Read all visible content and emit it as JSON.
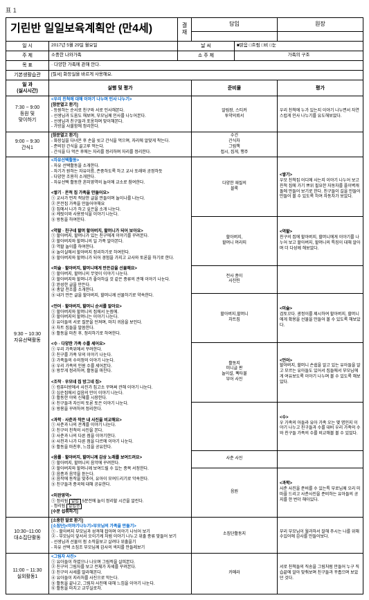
{
  "tableLabel": "표 1",
  "title": "기린반 일일보육계획안 (만4세)",
  "approval": {
    "gyeoljae": "결재",
    "damim": "담임",
    "wonjang": "원장"
  },
  "dateRow": {
    "label": "일  시",
    "value": "2017년  5월 29일 월요일",
    "weatherLabel": "날  씨",
    "weatherValue": "■맑음 □흐림 □비 □눈"
  },
  "topicRow": {
    "label": "주  제",
    "value": "소중한 나와가족",
    "subLabel": "소 주 제",
    "subValue": "가족의 구조"
  },
  "goalRow": {
    "label": "목  표",
    "value": "· 다양한 가족에 관해 안다."
  },
  "habitRow": {
    "label": "기본생활습관",
    "value": "[질서] 화장실을 바르게 사용해요."
  },
  "tableHeaders": {
    "time": "일  과\n(실시시간)",
    "content": "실행 및 평가",
    "materials": "준비물",
    "eval": "평가"
  },
  "rows": [
    {
      "time": "7:30 ~ 9:00\n등원 및\n맞이하기",
      "contentHtml": "<span class='activity-title'>&lt;우리 친척에 대해 이야기 나누며 인사 나누기&gt;</span><br><span class='sub-title'>[창문열고 환기]</span><br>- 등원하는 순서로 친구와 서로 인사해본다.<br>- 선생님과 도움도 해보며, 부모님께 인사를 나누어본다.<br>- 선생님과 친구들과 포옹하며 맞이해본다.<br>- 가방을 사물함에 정리한다.",
      "materials": "알림장, 스티커\n투약의뢰서",
      "eval": "우리 친척에 누가 있는지 이야기 나누면서 자연스럽게 인사 나누기를 유도해보았다."
    },
    {
      "time": "9:00 ~ 9:30\n간식1",
      "contentHtml": "<span class='sub-title'>[창문열고 환기]</span><br>- 화장실을 다녀온 후 손을 씻고 간식을 먹으며, 자리에 알맞게 착는다.<br>- 준비된 간식을 골고루 먹는다.<br>- 간식을 다 먹은 후에는 자리를 정리하며 자리를 정리한다.",
      "materials": "수건\n간식차\n그림책\n접시, 집게, 행주",
      "eval": ""
    },
    {
      "time": "9:30 ~ 10:30\n자유선택활동",
      "contentHtml": "<span class='activity-title'>&lt;자유선택활동&gt;</span><br>- 자유 선택활동을 소개한다.<br>- 자기가 원하는 자유이름, 존중하도록 하고 교사 또래와 공정하듯<br>- 다양한 조용히 소개한다.<br>- 자유선택 활동한 흔미영역의 놀이에 교소로 참여한다.<br><br><span class='sub-title'>&lt;쌓기 · 온적 집 가족을 만들어요&gt;</span><br>① 교사가 먼저 적당한 글을 만들이며 놀이나를 나눈다.<br>② 온전집 가족을 만들어야해요<br>③ 집에서 나가 하고 싶은을 소개 나눈다.<br>④ 케릿이와 사용방식을 이야기 나눈다.<br>⑤ 왕동을 하여한다.<br><br><span class='sub-title'>&lt;역할 · 친구네 할머 할아버지, 할머니가 되어 보아요&gt;</span><br>① 할아버지, 할머니가 있는 친구에게 이야기를 꾸려본다.<br>② 할아버지와 할머니의 일 가족 알아본다.<br>③ 역할 놀이를 하여한다.<br>④ 놀이실에서 할아버지 정리하기로 하여한다.<br>⑤ 할아버지와 할머니가 되어 경험을 가지고 교사와 토론을 하기로 한다.<br><br><span class='sub-title'>&lt;미술 · 할아버지, 할머니에게 만든감을 선물해요&gt;</span><br>① 할아버지, 할머니의 무엇이 이야기 나눈다.<br>② 할아버지와 할머니가 좋아하실 것 같은 종류의 관해 이야기 나눈다.<br>③ 완성한 글을 만든다.<br>④ 총알 천조를 소개한다.<br>⑤ 내가 만든 글을 할아버지, 할머니께 선물하기로 약속한다.<br><br><span class='sub-title'>&lt;언어 · 할아버지, 할머니 순서를 알아요&gt;</span><br>① 할아버지와 할머니의 집에서 눈점에.<br>② 할아버지의 할머니는 이야기 나눈다.<br>③ 유아들의 서로 질문을 던져며, 마치 귀음을 보인다.<br>④ 차트 집들을 말씀한다.<br>⑤ 활동을 마친 후, 정리하기로 하여한다.<br><br><span class='sub-title'>&lt;수 · 다양한 가족 수를 세어요&gt;</span><br>① 우리 가족위에서 꾸려한다.<br>② 친구를 가족 부의 이야기 나눈다.<br>③ 가족들의 수의정의 이야기 나눈다.<br>④ 우리 가족의 인원 수를 세어본다.<br>⑤ 왕무게 정리하여, 활동을 마찬다.<br><br><span class='sub-title'>&lt;조작 · 우모네 집 방그네 집&gt;</span><br>① 컴퓨터방에서 사진가 집고소 꾸며써 관해 이야기 나눈다.<br>② 심순집에서 걸음의 만이 이야기 나눈다.<br>③ 활동한 야외 신체를 시장한다.<br>④ 친구들과 자신의 토론 토은 이야기 나눈다.<br>⑤ 왕용을 꾸려하여 정리한다.<br><br><span class='sub-title'>&lt;과학 · 사춘과 작은 내 사진을 비교해요&gt;</span><br>① 사춘과 나의 관계를 이야기 나눈다.<br>② 친구의 친척의 사진을 본다.<br>③ 사춘과 나의 다른 점을 이야기한다.<br>④ 사천과 나가 다른 점을 다르에 이야기 나눈다.<br>⑤ 활동을 마친후, 느낌을 공유한다.<br><br><span class='sub-title'>&lt;음률 · 할아버지, 할머니께 감상 노래를 보여드려요&gt;</span><br>① 할아버지, 할머니의 음악에 꾸려한다.<br>② 할아버지와 할머니께 보여드릴 수 있는 종목 서정한다.<br>③ 음종과 음악을 듣는다.<br>④ 음작에 동작을 맞추어, 유아이 모여드리기로 악속한다.<br>⑤ 친구들과 종곡에 대해 공유한다.<br><br><span class='sub-title'>&lt;미완영역&gt;</span><br>① 정리됨 <span style='border:1px solid #000;padding:0 2px;'>알립</span> 5분전에 놀이 정리할 시간을 알린다.<br>- 정리됨 <span style='border:1px solid #000;padding:0 2px;'>알립증</span><br><span class='sub-title'>[수분 섭취하기]</span>",
      "materialsRows": [
        {
          "text": "다양한 재질의\n블록",
          "eval": "<span class='sub-title'>&lt;쌓기&gt;</span><br>우모 친척집 어디에 사는지 이야기 나누어 보고 친척 집에 가기 쁘위 필요한 자동차를 플이벽캐돌에 만들어 보기로 한다. 친구들이 길을 만들어 만들어 볼 수 있도록 하여 자동차가 보았다."
        },
        {
          "text": "할아버지,\n할머니 머리띠",
          "eval": "<span class='sub-title'>&lt;역할&gt;</span><br>친구의 집에 할아버지, 할머니에게 이야기를 나누어 보고 할아버지, 할머니의 특징이 대해 알아며 더 다성께 해보았다."
        },
        {
          "text": "전사 종이\n사진띤",
          "eval": ""
        },
        {
          "text": "할아버지,할머니\n차트집",
          "eval": "<span class='sub-title'>&lt;미술&gt;</span><br>검토꼬다. 광정이를 제시하여 할아버지, 할머니에게 확용을 선물을 만들어 볼 수 있도록 해보았다."
        },
        {
          "text": "활동지\n미니글 판\n놀이설, 펙타불\n부어 사진",
          "eval": "<span class='sub-title'>&lt;언어&gt;</span><br>할아버지, 할머니 손쉽을 알고 있는 유아들을 알고 모르는 유아들도 있어서 집들에서 부모님에게 여유보도록 이야기 나누며 볼 수 있도록 해보았다."
        },
        {
          "text": "",
          "eval": "<span class='sub-title'>&lt;수&gt;</span><br>우 가족의 아들라 유아 가족 오는 몇 명인지 이야기 나누고 친구들과 수를 대비 우리 가족의 수와 친구들 가족의 수를 비교해볼 볼 수 있었다."
        },
        {
          "text": "사춘 사진",
          "eval": ""
        },
        {
          "text": "음원",
          "eval": "<span class='sub-title'>&lt;과학&gt;</span><br>사춘 사진을 준비를 수 있는특 부로님께 오리 미마플 드리고 사춘사진을 준비하는 유아들의 공지를 한 번더 해아있다."
        }
      ]
    },
    {
      "time": "10:30~11:00\n대소집단활동",
      "contentHtml": "<span class='sub-title'>[소중한 발로 환기]</span><br><span class='activity-title'>[소짐단]&lt;이야기나누기&gt;부모님의 가족을 만들기&gt;</span><br>① - 할아버지 부모님과 성격해 잡아며 이야기 나뉘어 보기<br>② - 부모님이 앞서서 오이기케 처럼 이야기 나누고 위출 종류 맞들어 보기<br>- 선생님과 선물이 점 소작을보고 살려다 위출을기<br>- 자유 선택 소짐조 부모님께 감사의 색지를 만들레보기",
      "materials": "소집단활동지",
      "eval": "부리 부모님이 월과하서 잘해 주시는 나를 위해 수있어에 감사를 만들어보다."
    },
    {
      "time": "11:00 ~ 11:30\n실외활동1",
      "contentHtml": "<span class='activity-title'>&lt;그림자 사진&gt;</span><br>① 유아들이 하였으나 나오며 그림적을 살피본다.<br>② 친구의 그림자를 보고 전체가 자세를 꾸려본다.<br>③ 친구의 사세를 말라해본다.<br>④ 유아들이 지라처를 사진으로 막는다.<br>⑤ 활동을 끝나고, 그림자 사진에 대해 느낌을 이야기 나눈다.<br>⑥ 활동을 마치고 교무실로차.",
      "materials": "카메라",
      "eval": "서로 친척들의 직송을 그림처럼 만들어 누구 직습끝에 알아 맞춰보며 친구들과 꾸좁으며 보았던 것다."
    }
  ]
}
